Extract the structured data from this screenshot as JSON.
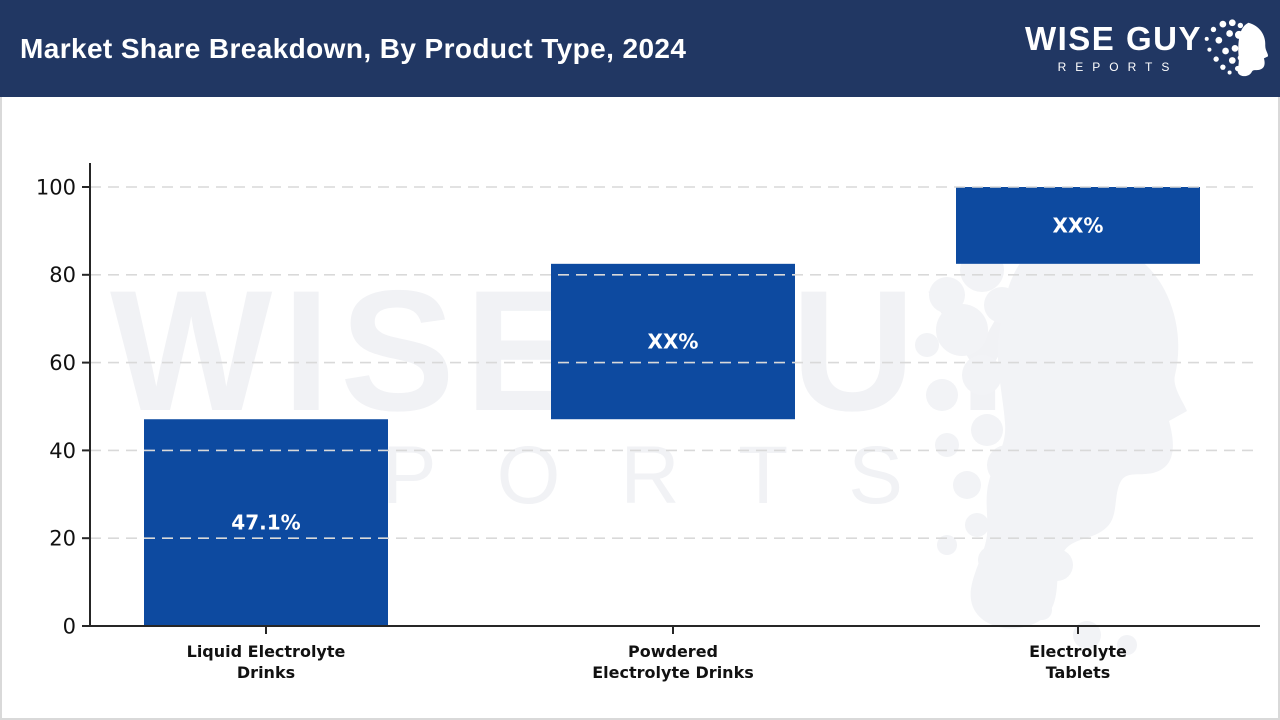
{
  "header": {
    "title": "Market Share Breakdown, By Product Type, 2024",
    "brand": {
      "name_line": "WISE GUY",
      "sub_line": "REPORTS"
    }
  },
  "watermark": {
    "name_line": "WISE GUY",
    "sub_line": "REPORTS"
  },
  "colors": {
    "header_bg": "#213763",
    "bar": "#0d4aa0",
    "grid": "#d9d9d9",
    "axis": "#262626",
    "text": "#111111",
    "bar_label": "#ffffff",
    "watermark": "#f1f2f5"
  },
  "chart_data": {
    "type": "bar",
    "variant": "stacked-waterfall",
    "title": "Market Share Breakdown, By Product Type, 2024",
    "categories": [
      [
        "Liquid Electrolyte",
        "Drinks"
      ],
      [
        "Powdered",
        "Electrolyte Drinks"
      ],
      [
        "Electrolyte",
        "Tablets"
      ]
    ],
    "segments": [
      {
        "category": "Liquid Electrolyte Drinks",
        "label": "47.1%",
        "start": 0,
        "end": 47.1
      },
      {
        "category": "Powdered Electrolyte Drinks",
        "label": "XX%",
        "start": 47.1,
        "end": 82.5
      },
      {
        "category": "Electrolyte Tablets",
        "label": "XX%",
        "start": 82.5,
        "end": 100
      }
    ],
    "yticks": [
      0,
      20,
      40,
      60,
      80,
      100
    ],
    "ylim": [
      0,
      100
    ],
    "xlabel": "",
    "ylabel": "",
    "grid": "horizontal-dashed",
    "legend": "none"
  }
}
